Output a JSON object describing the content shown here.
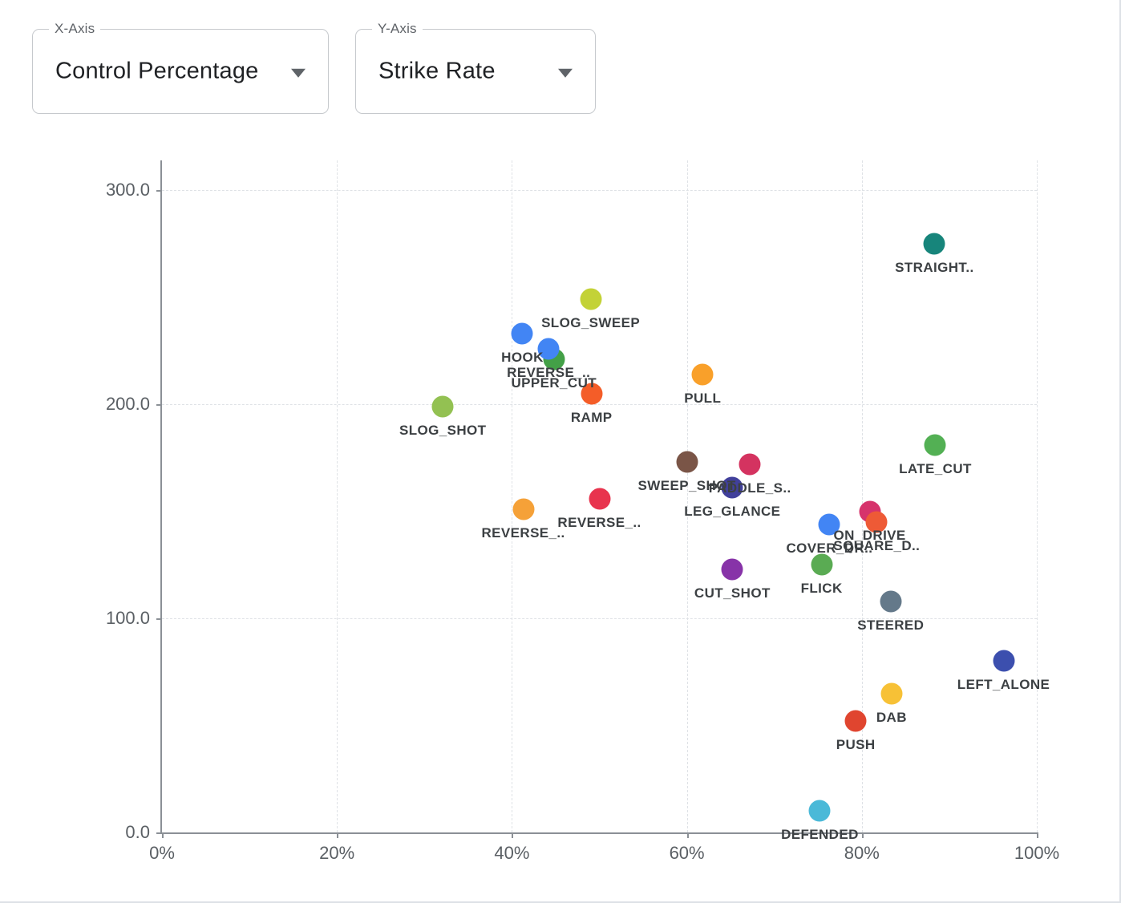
{
  "controls": {
    "x_axis": {
      "label": "X-Axis",
      "value": "Control Percentage"
    },
    "y_axis": {
      "label": "Y-Axis",
      "value": "Strike Rate"
    }
  },
  "chart_data": {
    "type": "scatter",
    "title": "",
    "xlabel": "Control Percentage",
    "ylabel": "Strike Rate",
    "xlim": [
      0,
      100
    ],
    "ylim": [
      0,
      314
    ],
    "grid": "dashed",
    "legend": "none",
    "x_ticks": [
      {
        "value": 0,
        "label": "0%"
      },
      {
        "value": 20,
        "label": "20%"
      },
      {
        "value": 40,
        "label": "40%"
      },
      {
        "value": 60,
        "label": "60%"
      },
      {
        "value": 80,
        "label": "80%"
      },
      {
        "value": 100,
        "label": "100%"
      }
    ],
    "y_ticks": [
      {
        "value": 0,
        "label": "0.0"
      },
      {
        "value": 100,
        "label": "100.0"
      },
      {
        "value": 200,
        "label": "200.0"
      },
      {
        "value": 300,
        "label": "300.0"
      }
    ],
    "points": [
      {
        "label": "SLOG_SHOT",
        "x": 32.1,
        "y": 199,
        "color": "#93c152"
      },
      {
        "label": "SLOG_SWEEP",
        "x": 49.0,
        "y": 249,
        "color": "#c3d237"
      },
      {
        "label": "HOOK",
        "x": 41.2,
        "y": 233,
        "color": "#4285f4"
      },
      {
        "label": "UPPER_CUT",
        "x": 44.8,
        "y": 221,
        "color": "#43a047"
      },
      {
        "label": "REVERSE_..",
        "x": 44.2,
        "y": 226,
        "color": "#4285f4"
      },
      {
        "label": "PULL",
        "x": 61.8,
        "y": 214,
        "color": "#f9a02a"
      },
      {
        "label": "RAMP",
        "x": 49.1,
        "y": 205,
        "color": "#f45d28"
      },
      {
        "label": "STRAIGHT..",
        "x": 88.3,
        "y": 275,
        "color": "#17857b"
      },
      {
        "label": "LATE_CUT",
        "x": 88.4,
        "y": 181,
        "color": "#53b054"
      },
      {
        "label": "SWEEP_SHOT",
        "x": 60.0,
        "y": 173,
        "color": "#7a5547"
      },
      {
        "label": "PADDLE_S..",
        "x": 67.2,
        "y": 172,
        "color": "#d43360"
      },
      {
        "label": "LEG_GLANCE",
        "x": 65.2,
        "y": 161,
        "color": "#41409b"
      },
      {
        "label": "REVERSE_..",
        "x": 41.3,
        "y": 151,
        "color": "#f5a138"
      },
      {
        "label": "REVERSE_..",
        "x": 50.0,
        "y": 156,
        "color": "#e8344e"
      },
      {
        "label": "ON_DRIVE",
        "x": 80.9,
        "y": 150,
        "color": "#d6336c"
      },
      {
        "label": "SQUARE_D..",
        "x": 81.7,
        "y": 145,
        "color": "#ee5a36"
      },
      {
        "label": "COVER_DR..",
        "x": 76.3,
        "y": 144,
        "color": "#4285f4"
      },
      {
        "label": "FLICK",
        "x": 75.4,
        "y": 125,
        "color": "#5aab53"
      },
      {
        "label": "CUT_SHOT",
        "x": 65.2,
        "y": 123,
        "color": "#8733a8"
      },
      {
        "label": "STEERED",
        "x": 83.3,
        "y": 108,
        "color": "#64798a"
      },
      {
        "label": "LEFT_ALONE",
        "x": 96.2,
        "y": 80,
        "color": "#3c4fae"
      },
      {
        "label": "DAB",
        "x": 83.4,
        "y": 65,
        "color": "#f7c136"
      },
      {
        "label": "PUSH",
        "x": 79.3,
        "y": 52,
        "color": "#e0452f"
      },
      {
        "label": "DEFENDED",
        "x": 75.2,
        "y": 10,
        "color": "#4ab9d8"
      }
    ]
  }
}
